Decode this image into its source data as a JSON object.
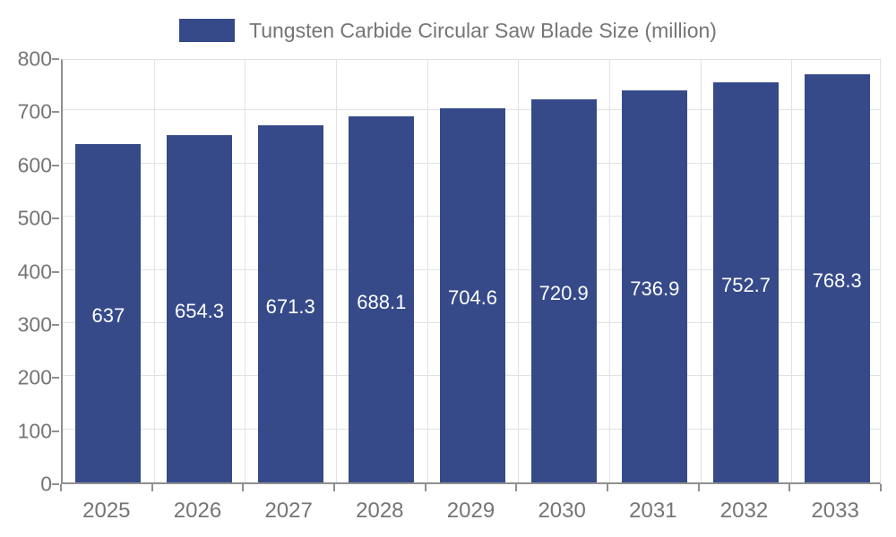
{
  "colors": {
    "bar": "#364a8a",
    "grid": "#e2e2e2",
    "axis": "#8f8f8f",
    "tick_text": "#757575",
    "bar_label_text": "#ffffff",
    "background": "#ffffff"
  },
  "legend": {
    "label": "Tungsten Carbide Circular Saw Blade Size (million)"
  },
  "chart_data": {
    "type": "bar",
    "title": "Tungsten Carbide Circular Saw Blade Size (million)",
    "categories": [
      "2025",
      "2026",
      "2027",
      "2028",
      "2029",
      "2030",
      "2031",
      "2032",
      "2033"
    ],
    "values": [
      637,
      654.3,
      671.3,
      688.1,
      704.6,
      720.9,
      736.9,
      752.7,
      768.3
    ],
    "value_labels": [
      "637",
      "654.3",
      "671.3",
      "688.1",
      "704.6",
      "720.9",
      "736.9",
      "752.7",
      "768.3"
    ],
    "xlabel": "",
    "ylabel": "",
    "ylim": [
      0,
      800
    ],
    "ytick_step": 100,
    "ytick_labels": [
      "0",
      "100",
      "200",
      "300",
      "400",
      "500",
      "600",
      "700",
      "800"
    ],
    "grid": true,
    "legend_position": "top",
    "bar_label_position": "center"
  }
}
